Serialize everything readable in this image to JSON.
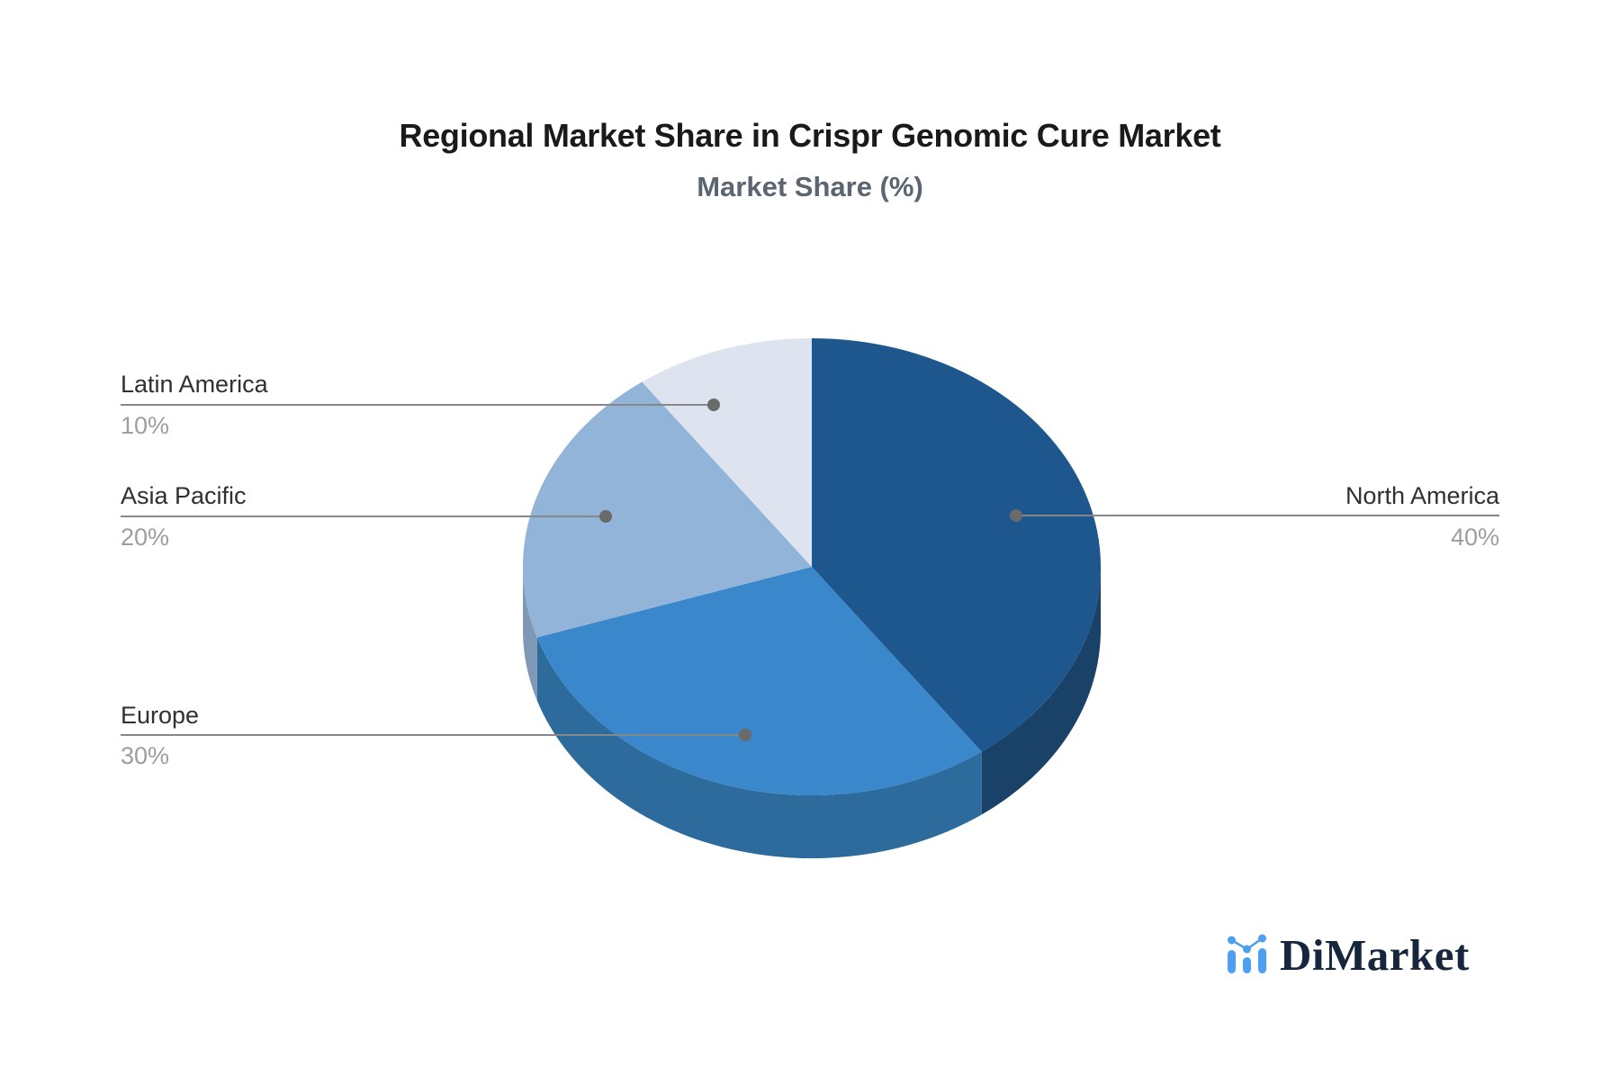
{
  "header": {
    "title": "Regional Market Share in Crispr Genomic Cure Market",
    "subtitle": "Market Share (%)"
  },
  "chart_data": {
    "type": "pie",
    "title": "Regional Market Share in Crispr Genomic Cure Market",
    "subtitle": "Market Share (%)",
    "unit": "%",
    "start_angle_deg": 0,
    "direction": "clockwise",
    "effect": "3d-depth",
    "legend_position": "callout-labels",
    "slices": [
      {
        "label": "North America",
        "value": 40,
        "display": "40%",
        "color": "#1d578d",
        "side_color": "#1a4268",
        "label_side": "right"
      },
      {
        "label": "Europe",
        "value": 30,
        "display": "30%",
        "color": "#3a87cb",
        "side_color": "#2d6b9c",
        "label_side": "left"
      },
      {
        "label": "Asia Pacific",
        "value": 20,
        "display": "20%",
        "color": "#93b4d9",
        "side_color": "#7e98b6",
        "label_side": "left"
      },
      {
        "label": "Latin America",
        "value": 10,
        "display": "10%",
        "color": "#dee4ef",
        "side_color": "#afbdd1",
        "label_side": "left"
      }
    ]
  },
  "branding": {
    "logo_text": "DiMarket",
    "logo_icon": "bar-chart-icon",
    "icon_color": "#4c9ff1",
    "text_color": "#16263c"
  },
  "styles": {
    "title_color": "#1a1a1a",
    "subtitle_color": "#5b6671",
    "label_color": "#303030",
    "pct_color": "#9e9e9e",
    "leader_line_color": "#878787",
    "leader_dot_color": "#6a6a6a",
    "background": "#ffffff"
  }
}
